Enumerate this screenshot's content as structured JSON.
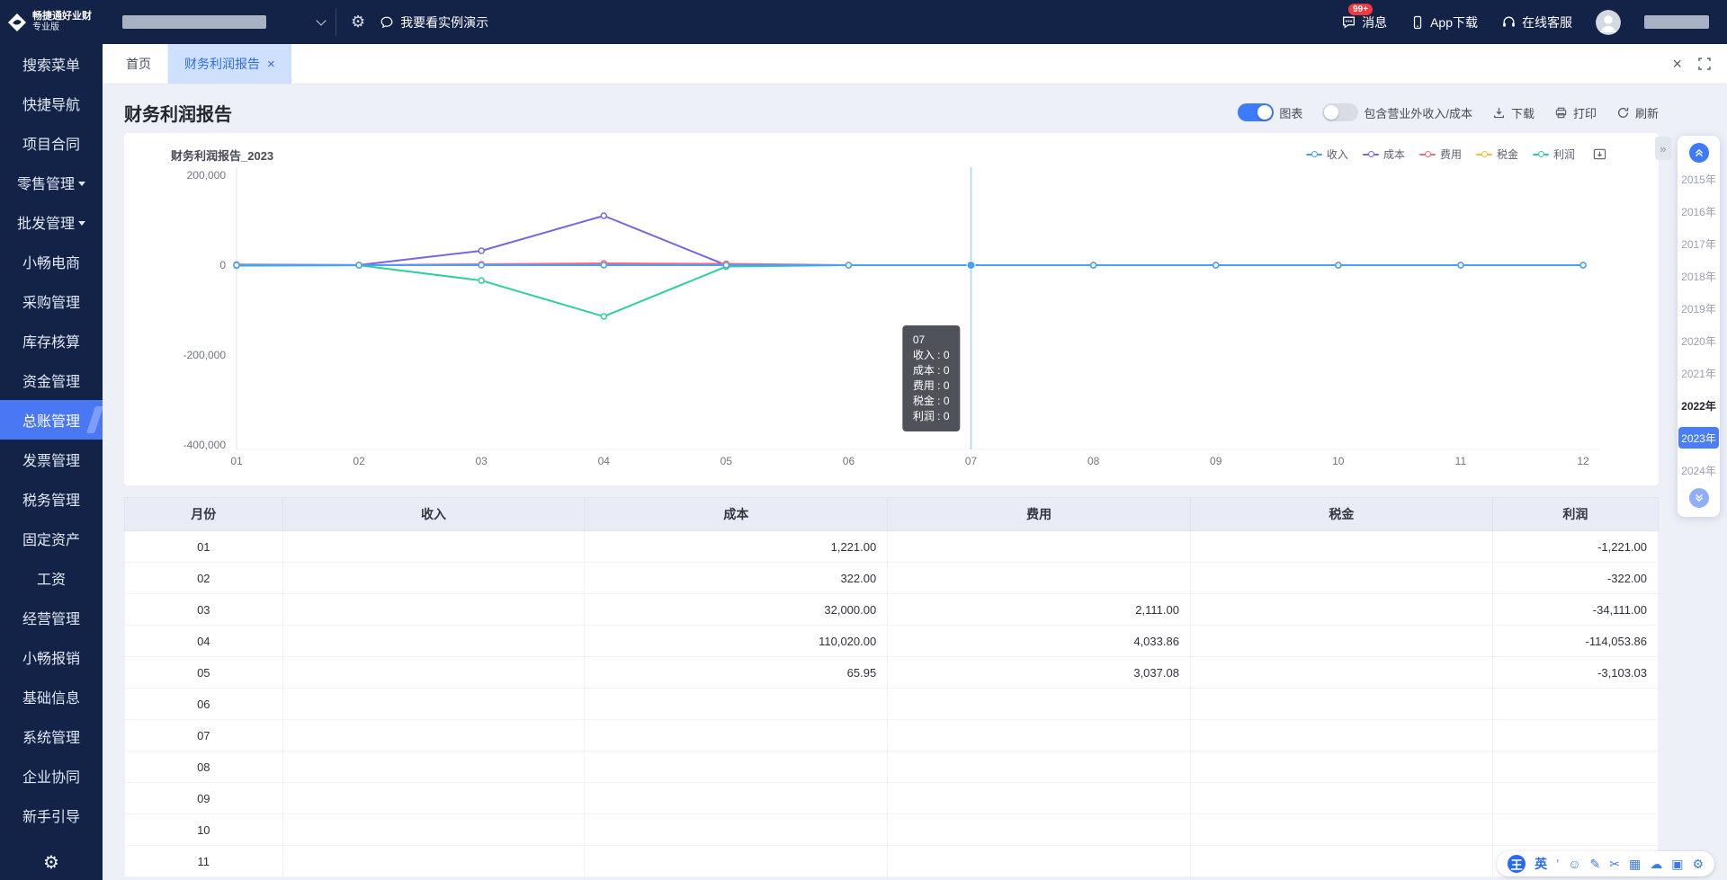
{
  "theme": {
    "sidebar_bg": "#132247",
    "accent_blue": "#3e7bfa",
    "active_menu": "#4a78f5",
    "tab_active_bg": "#cfe0fd",
    "tab_active_text": "#2e6cf0",
    "content_bg": "#eef0f8",
    "table_header_bg": "#e9ecf6",
    "badge_red": "#f5383d",
    "year_selected": "#4a7df6",
    "crosshair": "#a5d6f2"
  },
  "app": {
    "logo_title": "畅捷通好业财",
    "logo_subtitle": "专业版"
  },
  "topbar": {
    "demo_text": "我要看实例演示",
    "messages_label": "消息",
    "messages_badge": "99+",
    "app_download_label": "App下载",
    "support_label": "在线客服"
  },
  "sidebar": {
    "items": [
      {
        "label": "搜索菜单",
        "active": false,
        "arrow": false
      },
      {
        "label": "快捷导航",
        "active": false,
        "arrow": false
      },
      {
        "label": "项目合同",
        "active": false,
        "arrow": false
      },
      {
        "label": "零售管理",
        "active": false,
        "arrow": true
      },
      {
        "label": "批发管理",
        "active": false,
        "arrow": true
      },
      {
        "label": "小畅电商",
        "active": false,
        "arrow": false
      },
      {
        "label": "采购管理",
        "active": false,
        "arrow": false
      },
      {
        "label": "库存核算",
        "active": false,
        "arrow": false
      },
      {
        "label": "资金管理",
        "active": false,
        "arrow": false
      },
      {
        "label": "总账管理",
        "active": true,
        "arrow": false
      },
      {
        "label": "发票管理",
        "active": false,
        "arrow": false
      },
      {
        "label": "税务管理",
        "active": false,
        "arrow": false
      },
      {
        "label": "固定资产",
        "active": false,
        "arrow": false
      },
      {
        "label": "工资",
        "active": false,
        "arrow": false
      },
      {
        "label": "经营管理",
        "active": false,
        "arrow": false
      },
      {
        "label": "小畅报销",
        "active": false,
        "arrow": false
      },
      {
        "label": "基础信息",
        "active": false,
        "arrow": false
      },
      {
        "label": "系统管理",
        "active": false,
        "arrow": false
      },
      {
        "label": "企业协同",
        "active": false,
        "arrow": false
      },
      {
        "label": "新手引导",
        "active": false,
        "arrow": false
      }
    ]
  },
  "tabs": [
    {
      "label": "首页",
      "active": false,
      "closable": false
    },
    {
      "label": "财务利润报告",
      "active": true,
      "closable": true
    }
  ],
  "page": {
    "title": "财务利润报告",
    "controls": {
      "chart_toggle_label": "图表",
      "chart_toggle_on": true,
      "include_toggle_label": "包含营业外收入/成本",
      "include_toggle_on": false,
      "download_label": "下载",
      "print_label": "打印",
      "refresh_label": "刷新"
    }
  },
  "chart_data": {
    "type": "line",
    "title": "财务利润报告_2023",
    "x": [
      "01",
      "02",
      "03",
      "04",
      "05",
      "06",
      "07",
      "08",
      "09",
      "10",
      "11",
      "12"
    ],
    "ylim": [
      -400000,
      200000
    ],
    "yticks": [
      {
        "value": 200000,
        "label": "200,000"
      },
      {
        "value": 0,
        "label": "0"
      },
      {
        "value": -200000,
        "label": "-200,000"
      },
      {
        "value": -400000,
        "label": "-400,000"
      }
    ],
    "grid": false,
    "legend_position": "top-right",
    "series": [
      {
        "name": "收入",
        "color": "#4aa0f8",
        "values": [
          0,
          0,
          0,
          0,
          0,
          0,
          0,
          0,
          0,
          0,
          0,
          0
        ]
      },
      {
        "name": "成本",
        "color": "#7b64e0",
        "values": [
          1221,
          322,
          32000,
          110020,
          65.95,
          0,
          0,
          0,
          0,
          0,
          0,
          0
        ]
      },
      {
        "name": "费用",
        "color": "#ef6b82",
        "values": [
          0,
          0,
          2111,
          4033.86,
          3037.08,
          0,
          0,
          0,
          0,
          0,
          0,
          0
        ]
      },
      {
        "name": "税金",
        "color": "#edc13a",
        "values": [
          0,
          0,
          0,
          0,
          0,
          0,
          0,
          0,
          0,
          0,
          0,
          0
        ]
      },
      {
        "name": "利润",
        "color": "#30cfa0",
        "values": [
          -1221,
          -322,
          -34111,
          -114053.86,
          -3103.03,
          0,
          0,
          0,
          0,
          0,
          0,
          0
        ]
      }
    ],
    "tooltip": {
      "x_index": 6,
      "title": "07",
      "lines": [
        "收入 : 0",
        "成本 : 0",
        "费用 : 0",
        "税金 : 0",
        "利润 : 0"
      ]
    }
  },
  "year_panel": {
    "items": [
      "2015年",
      "2016年",
      "2017年",
      "2018年",
      "2019年",
      "2020年",
      "2021年",
      "2022年",
      "2023年",
      "2024年"
    ],
    "selected": "2023年",
    "current": "2022年"
  },
  "table": {
    "headers": [
      "月份",
      "收入",
      "成本",
      "费用",
      "税金",
      "利润"
    ],
    "rows": [
      [
        "01",
        "",
        "1,221.00",
        "",
        "",
        "-1,221.00"
      ],
      [
        "02",
        "",
        "322.00",
        "",
        "",
        "-322.00"
      ],
      [
        "03",
        "",
        "32,000.00",
        "2,111.00",
        "",
        "-34,111.00"
      ],
      [
        "04",
        "",
        "110,020.00",
        "4,033.86",
        "",
        "-114,053.86"
      ],
      [
        "05",
        "",
        "65.95",
        "3,037.08",
        "",
        "-3,103.03"
      ],
      [
        "06",
        "",
        "",
        "",
        "",
        ""
      ],
      [
        "07",
        "",
        "",
        "",
        "",
        ""
      ],
      [
        "08",
        "",
        "",
        "",
        "",
        ""
      ],
      [
        "09",
        "",
        "",
        "",
        "",
        ""
      ],
      [
        "10",
        "",
        "",
        "",
        "",
        ""
      ],
      [
        "11",
        "",
        "",
        "",
        "",
        ""
      ]
    ]
  },
  "ime": {
    "mode_main": "王",
    "mode_lang": "英",
    "icons": [
      "punctuation",
      "emoji",
      "handwriting",
      "cut",
      "keyboard",
      "cloud",
      "clipboard",
      "toolbox"
    ]
  }
}
